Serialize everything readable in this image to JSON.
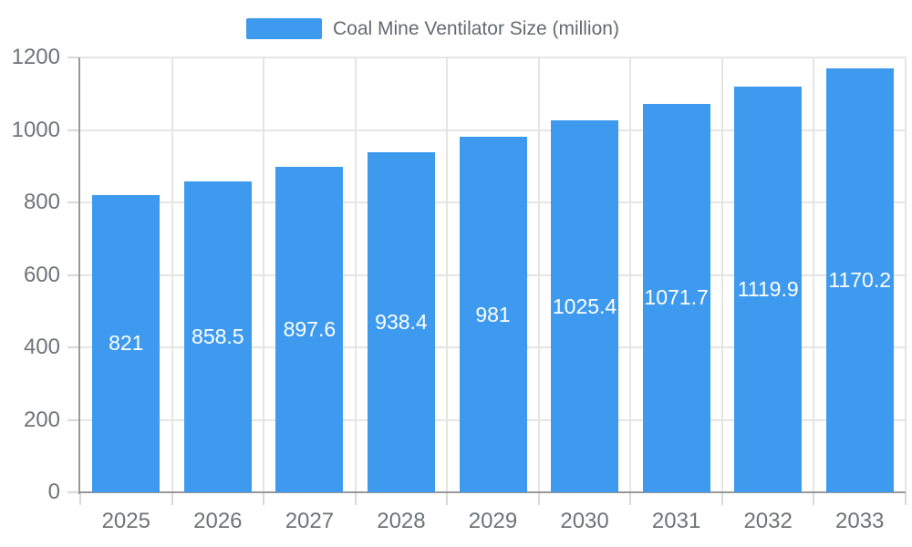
{
  "legend": {
    "label": "Coal Mine Ventilator Size (million)",
    "swatch_color": "#3D9AEE"
  },
  "chart_data": {
    "type": "bar",
    "title": "Coal Mine Ventilator Size (million)",
    "series_name": "Coal Mine Ventilator Size (million)",
    "categories": [
      "2025",
      "2026",
      "2027",
      "2028",
      "2029",
      "2030",
      "2031",
      "2032",
      "2033"
    ],
    "values": [
      821,
      858.5,
      897.6,
      938.4,
      981,
      1025.4,
      1071.7,
      1119.9,
      1170.2
    ],
    "value_labels": [
      "821",
      "858.5",
      "897.6",
      "938.4",
      "981",
      "1025.4",
      "1071.7",
      "1119.9",
      "1170.2"
    ],
    "xlabel": "",
    "ylabel": "",
    "ylim": [
      0,
      1200
    ],
    "yticks": [
      0,
      200,
      400,
      600,
      800,
      1000,
      1200
    ],
    "ytick_labels": [
      "0",
      "200",
      "400",
      "600",
      "800",
      "1000",
      "1200"
    ],
    "grid": true,
    "legend_position": "top",
    "colors": {
      "bar": "#3D9AEE",
      "value_label": "#ffffff",
      "axis_label": "#707379",
      "legend_text": "#65696e",
      "gridline": "#e5e5e5",
      "tick": "#d9d9d9",
      "axis_line": "#999999",
      "background": "#ffffff"
    }
  }
}
